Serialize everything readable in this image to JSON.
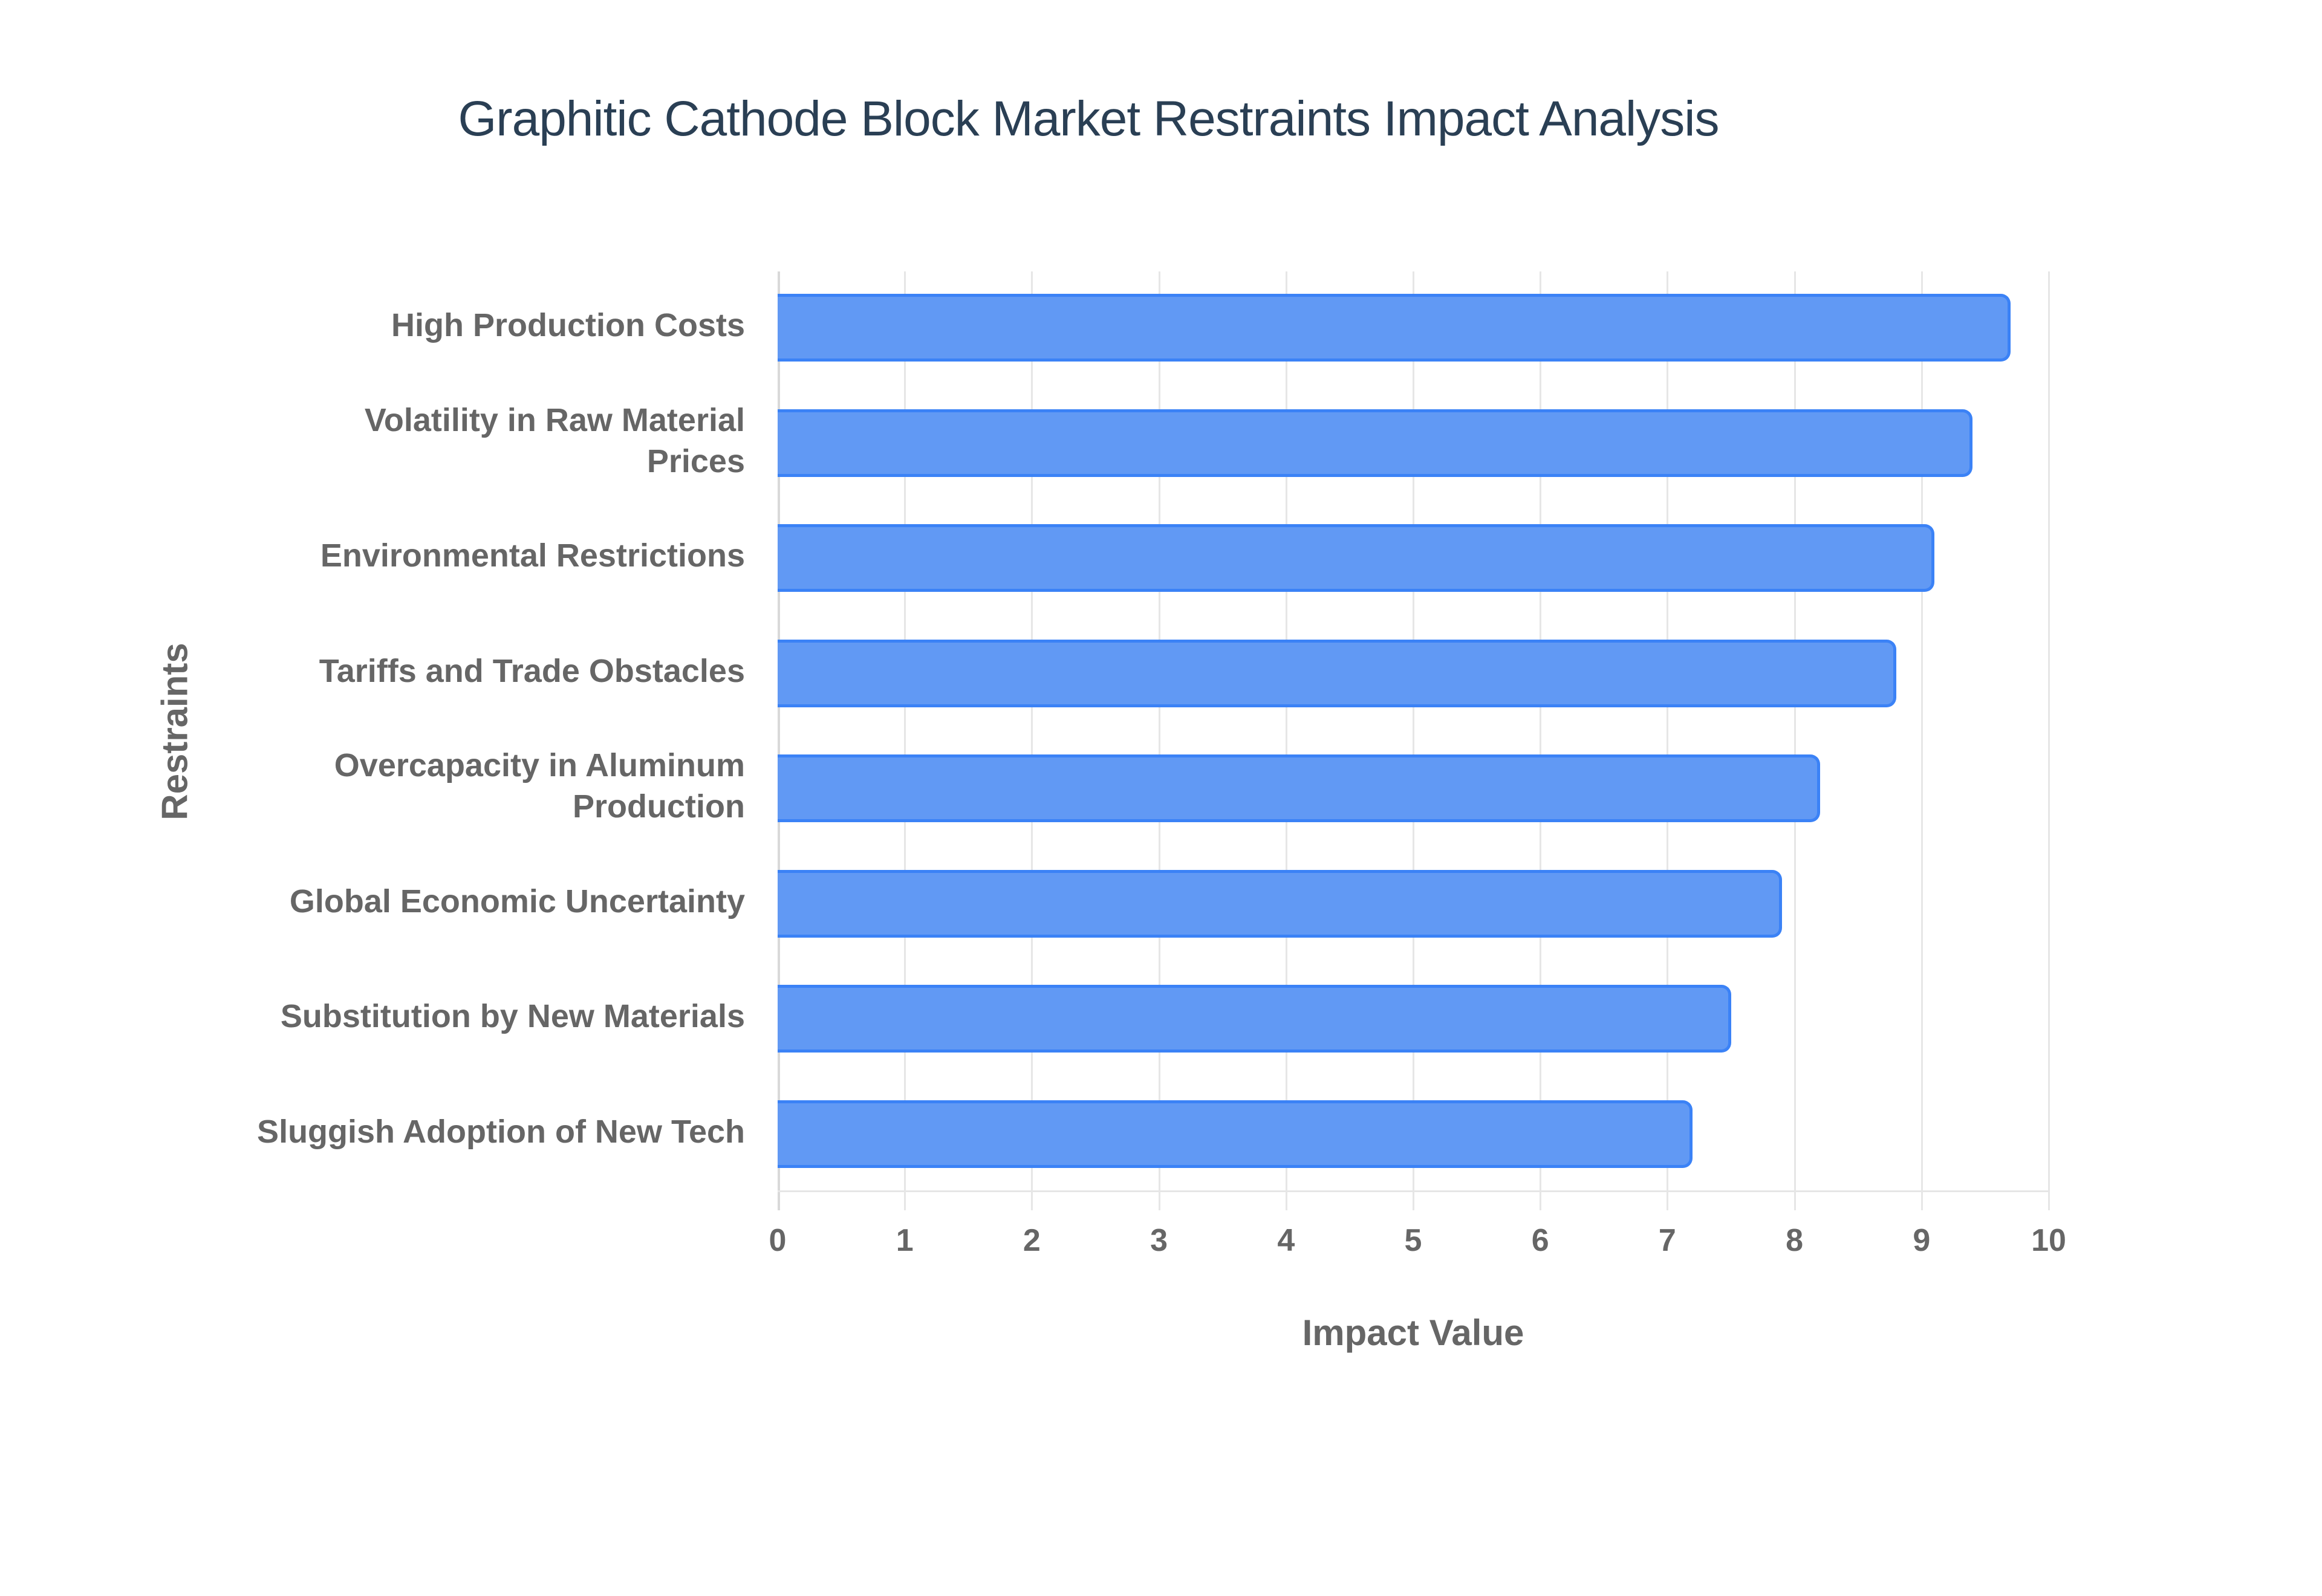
{
  "title": "Graphitic Cathode Block Market Restraints Impact Analysis",
  "xlabel": "Impact Value",
  "ylabel": "Restraints",
  "colors": {
    "bar_fill": "#6199f4",
    "bar_border": "#3b82f6",
    "title": "#2a3f54",
    "axis_text": "#666666",
    "grid": "#e6e6e6"
  },
  "ticks": [
    "0",
    "1",
    "2",
    "3",
    "4",
    "5",
    "6",
    "7",
    "8",
    "9",
    "10"
  ],
  "chart_data": {
    "type": "bar",
    "orientation": "horizontal",
    "title": "Graphitic Cathode Block Market Restraints Impact Analysis",
    "xlabel": "Impact Value",
    "ylabel": "Restraints",
    "xlim": [
      0,
      10
    ],
    "grid": true,
    "legend": null,
    "categories": [
      "High Production Costs",
      "Volatility in Raw Material Prices",
      "Environmental Restrictions",
      "Tariffs and Trade Obstacles",
      "Overcapacity in Aluminum Production",
      "Global Economic Uncertainty",
      "Substitution by New Materials",
      "Sluggish Adoption of New Tech"
    ],
    "values": [
      9.7,
      9.4,
      9.1,
      8.8,
      8.2,
      7.9,
      7.5,
      7.2
    ]
  },
  "labels_display": [
    [
      "High Production Costs"
    ],
    [
      "Volatility in Raw Material",
      "Prices"
    ],
    [
      "Environmental Restrictions"
    ],
    [
      "Tariffs and Trade Obstacles"
    ],
    [
      "Overcapacity in Aluminum",
      "Production"
    ],
    [
      "Global Economic Uncertainty"
    ],
    [
      "Substitution by New Materials"
    ],
    [
      "Sluggish Adoption of New Tech"
    ]
  ]
}
